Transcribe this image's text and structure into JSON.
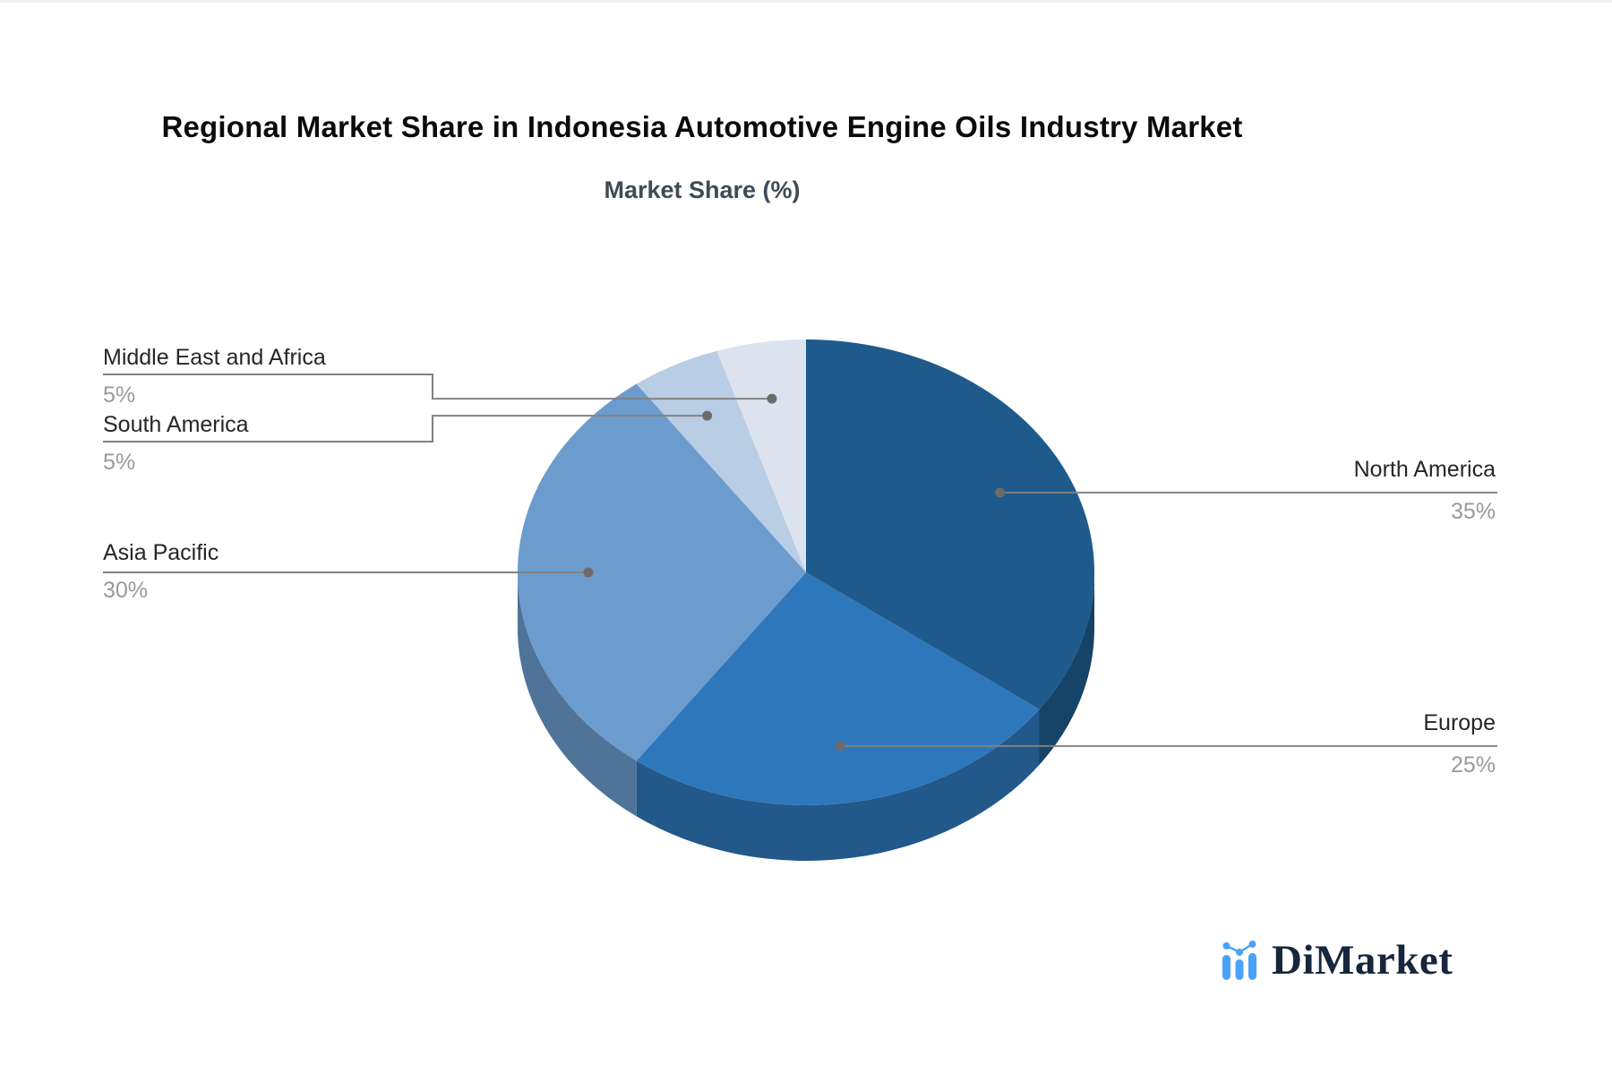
{
  "title": "Regional Market Share in Indonesia Automotive Engine Oils Industry Market",
  "subtitle": "Market Share (%)",
  "logo": {
    "text": "DiMarket",
    "icon_color": "#4aa3f7",
    "text_color": "#16263c"
  },
  "chart_data": {
    "type": "pie",
    "effect": "3d",
    "start_angle_deg": 0,
    "direction": "clockwise",
    "title": "Regional Market Share in Indonesia Automotive Engine Oils Industry Market",
    "subtitle": "Market Share (%)",
    "unit": "%",
    "connector_color": "#828282",
    "slices": [
      {
        "label": "North America",
        "value": 35,
        "pct_label": "35%",
        "color": "#1e5a8c"
      },
      {
        "label": "Europe",
        "value": 25,
        "pct_label": "25%",
        "color": "#2e77ba"
      },
      {
        "label": "Asia Pacific",
        "value": 30,
        "pct_label": "30%",
        "color": "#6c9bcd"
      },
      {
        "label": "South America",
        "value": 5,
        "pct_label": "5%",
        "color": "#b9cde5"
      },
      {
        "label": "Middle East and Africa",
        "value": 5,
        "pct_label": "5%",
        "color": "#dce3ee"
      }
    ]
  }
}
